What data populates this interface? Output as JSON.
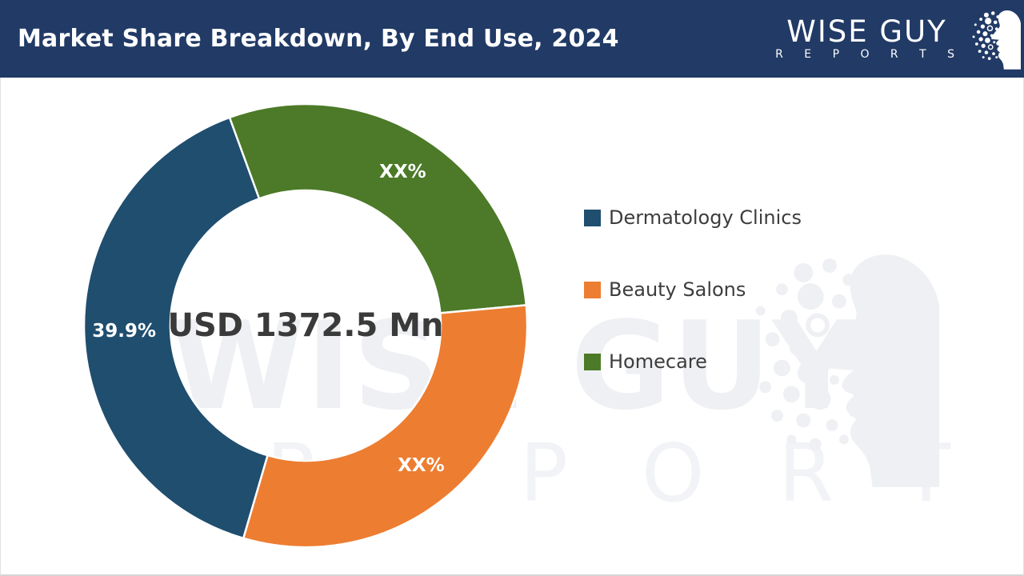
{
  "header": {
    "title": "Market Share Breakdown, By End Use, 2024",
    "background_color": "#213A66",
    "logo": {
      "name": "WISE GUY",
      "subtitle": "R E P O R T S"
    }
  },
  "chart_data": {
    "type": "pie",
    "subtype": "donut",
    "title": "Market Share Breakdown, By End Use, 2024",
    "center_label": "USD 1372.5 Mn",
    "start_angle_deg_cw_from_north": 196.3,
    "legend_position": "right",
    "segments": [
      {
        "name": "Dermatology Clinics",
        "value": 39.9,
        "display_label": "39.9%",
        "color": "#1F4E6F"
      },
      {
        "name": "Homecare",
        "value": 29.1,
        "display_label": "XX%",
        "color": "#4C7A28"
      },
      {
        "name": "Beauty Salons",
        "value": 31.0,
        "display_label": "XX%",
        "color": "#ED7D31"
      }
    ]
  },
  "legend": {
    "items": [
      {
        "label": "Dermatology Clinics",
        "color": "#1F4E6F"
      },
      {
        "label": "Beauty Salons",
        "color": "#ED7D31"
      },
      {
        "label": "Homecare",
        "color": "#4C7A28"
      }
    ]
  },
  "watermark": {
    "line1": "WISE GUY",
    "line2": "REPORTS"
  }
}
